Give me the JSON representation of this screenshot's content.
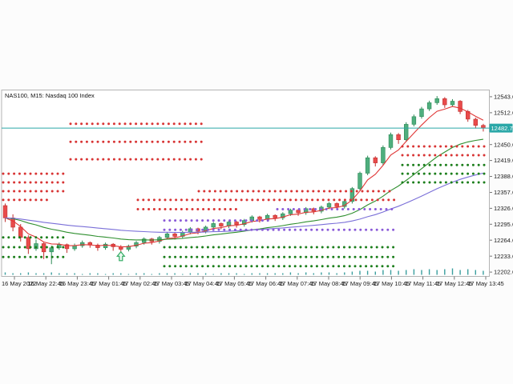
{
  "window": {
    "background": "#fcfcfc"
  },
  "chart_data": {
    "type": "candlestick",
    "title": "NAS100, M15:  Nasdaq 100 Index",
    "symbol": "NAS100",
    "timeframe": "M15",
    "ylim": [
      12195,
      12556
    ],
    "grid": false,
    "colors": {
      "bull": "#4fae7e",
      "bull_border": "#2e8b57",
      "bear": "#e94b4b",
      "bear_border": "#c03030",
      "current_line": "#2aa7a7",
      "volume": "#3a9e9e",
      "axis_text": "#1a1a1a",
      "dot_red": "#d83434",
      "dot_green": "#1b7e1b",
      "dot_purple": "#8a5ad8"
    },
    "price_axis": {
      "labels": [
        {
          "text": "12543.65",
          "price": 12543.65
        },
        {
          "text": "12512.65",
          "price": 12512.65
        },
        {
          "text": "12450.65",
          "price": 12450.65
        },
        {
          "text": "12419.65",
          "price": 12419.65
        },
        {
          "text": "12388.65",
          "price": 12388.65
        },
        {
          "text": "12357.65",
          "price": 12357.65
        },
        {
          "text": "12326.65",
          "price": 12326.65
        },
        {
          "text": "12295.65",
          "price": 12295.65
        },
        {
          "text": "12264.65",
          "price": 12264.65
        },
        {
          "text": "12233.65",
          "price": 12233.65
        },
        {
          "text": "12202.65",
          "price": 12202.65
        }
      ],
      "current": {
        "text": "12482.7",
        "price": 12482.7
      }
    },
    "time_axis": {
      "labels": [
        "16 May 2022",
        "16 May 22:45",
        "16 May 23:45",
        "17 May 01:45",
        "17 May 02:45",
        "17 May 03:45",
        "17 May 04:45",
        "17 May 05:45",
        "17 May 06:45",
        "17 May 07:45",
        "17 May 08:45",
        "17 May 09:45",
        "17 May 10:45",
        "17 May 11:45",
        "17 May 12:45",
        "17 May 13:45"
      ]
    },
    "candles": [
      [
        12332,
        12336,
        12300,
        12308
      ],
      [
        12308,
        12315,
        12282,
        12290
      ],
      [
        12290,
        12296,
        12262,
        12270
      ],
      [
        12270,
        12274,
        12238,
        12248
      ],
      [
        12248,
        12266,
        12244,
        12258
      ],
      [
        12258,
        12260,
        12228,
        12242
      ],
      [
        12242,
        12254,
        12218,
        12250
      ],
      [
        12250,
        12260,
        12246,
        12256
      ],
      [
        12256,
        12258,
        12240,
        12248
      ],
      [
        12248,
        12258,
        12244,
        12254
      ],
      [
        12254,
        12264,
        12250,
        12260
      ],
      [
        12260,
        12262,
        12250,
        12255
      ],
      [
        12255,
        12258,
        12244,
        12250
      ],
      [
        12250,
        12260,
        12246,
        12257
      ],
      [
        12257,
        12259,
        12244,
        12252
      ],
      [
        12252,
        12255,
        12238,
        12247
      ],
      [
        12247,
        12256,
        12243,
        12253
      ],
      [
        12253,
        12263,
        12249,
        12260
      ],
      [
        12260,
        12270,
        12256,
        12267
      ],
      [
        12267,
        12269,
        12256,
        12262
      ],
      [
        12262,
        12273,
        12258,
        12270
      ],
      [
        12270,
        12280,
        12266,
        12277
      ],
      [
        12277,
        12279,
        12266,
        12272
      ],
      [
        12272,
        12283,
        12268,
        12280
      ],
      [
        12280,
        12290,
        12276,
        12287
      ],
      [
        12287,
        12289,
        12276,
        12282
      ],
      [
        12282,
        12293,
        12278,
        12290
      ],
      [
        12290,
        12300,
        12286,
        12297
      ],
      [
        12297,
        12299,
        12286,
        12292
      ],
      [
        12292,
        12303,
        12288,
        12300
      ],
      [
        12300,
        12302,
        12289,
        12295
      ],
      [
        12295,
        12306,
        12291,
        12303
      ],
      [
        12303,
        12313,
        12299,
        12310
      ],
      [
        12310,
        12312,
        12299,
        12305
      ],
      [
        12305,
        12316,
        12301,
        12313
      ],
      [
        12313,
        12315,
        12302,
        12308
      ],
      [
        12308,
        12319,
        12304,
        12316
      ],
      [
        12316,
        12326,
        12312,
        12323
      ],
      [
        12323,
        12325,
        12312,
        12318
      ],
      [
        12318,
        12329,
        12314,
        12326
      ],
      [
        12326,
        12328,
        12315,
        12321
      ],
      [
        12321,
        12332,
        12317,
        12329
      ],
      [
        12329,
        12339,
        12325,
        12336
      ],
      [
        12336,
        12338,
        12324,
        12330
      ],
      [
        12330,
        12343,
        12326,
        12340
      ],
      [
        12340,
        12368,
        12336,
        12365
      ],
      [
        12365,
        12398,
        12361,
        12395
      ],
      [
        12395,
        12429,
        12391,
        12425
      ],
      [
        12425,
        12428,
        12408,
        12415
      ],
      [
        12415,
        12449,
        12411,
        12445
      ],
      [
        12445,
        12474,
        12441,
        12470
      ],
      [
        12470,
        12473,
        12452,
        12460
      ],
      [
        12460,
        12494,
        12456,
        12490
      ],
      [
        12490,
        12509,
        12486,
        12505
      ],
      [
        12505,
        12524,
        12501,
        12520
      ],
      [
        12520,
        12536,
        12516,
        12532
      ],
      [
        12532,
        12545,
        12528,
        12540
      ],
      [
        12540,
        12543,
        12522,
        12528
      ],
      [
        12528,
        12539,
        12524,
        12535
      ],
      [
        12535,
        12537,
        12510,
        12515
      ],
      [
        12515,
        12518,
        12495,
        12500
      ],
      [
        12500,
        12503,
        12482,
        12488
      ],
      [
        12488,
        12491,
        12476,
        12482.7
      ]
    ],
    "volumes": [
      3,
      2,
      2,
      3,
      2,
      2,
      3,
      2,
      2,
      2,
      1,
      2,
      2,
      1,
      2,
      2,
      1,
      2,
      2,
      1,
      2,
      2,
      2,
      1,
      2,
      2,
      2,
      1,
      2,
      2,
      2,
      1,
      2,
      2,
      2,
      2,
      2,
      3,
      2,
      3,
      2,
      3,
      3,
      2,
      3,
      4,
      5,
      5,
      4,
      6,
      6,
      5,
      6,
      7,
      6,
      7,
      6,
      7,
      8,
      6,
      7,
      6,
      5
    ],
    "moving_averages": [
      {
        "name": "fast-red",
        "period": 5,
        "color": "#e03636"
      },
      {
        "name": "slow-green",
        "period": 21,
        "color": "#2f8f2f"
      },
      {
        "name": "trend-purple",
        "period": 50,
        "color": "#7a6fd8"
      }
    ],
    "sr_dot_rows": [
      {
        "color": "#d83434",
        "price": 12491,
        "segments": [
          [
            88,
            252
          ]
        ]
      },
      {
        "color": "#d83434",
        "price": 12456,
        "segments": [
          [
            88,
            252
          ]
        ]
      },
      {
        "color": "#d83434",
        "price": 12422,
        "segments": [
          [
            88,
            252
          ]
        ]
      },
      {
        "color": "#d83434",
        "price": 12447,
        "segments": [
          [
            502,
            608
          ]
        ]
      },
      {
        "color": "#d83434",
        "price": 12430,
        "segments": [
          [
            502,
            608
          ]
        ]
      },
      {
        "color": "#1b7e1b",
        "price": 12411,
        "segments": [
          [
            502,
            608
          ]
        ]
      },
      {
        "color": "#1b7e1b",
        "price": 12394,
        "segments": [
          [
            502,
            608
          ]
        ]
      },
      {
        "color": "#1b7e1b",
        "price": 12377,
        "segments": [
          [
            502,
            608
          ]
        ]
      },
      {
        "color": "#d83434",
        "price": 12394,
        "segments": [
          [
            4,
            80
          ]
        ]
      },
      {
        "color": "#d83434",
        "price": 12377,
        "segments": [
          [
            4,
            80
          ]
        ]
      },
      {
        "color": "#d83434",
        "price": 12360,
        "segments": [
          [
            4,
            80
          ],
          [
            248,
            492
          ]
        ]
      },
      {
        "color": "#d83434",
        "price": 12343,
        "segments": [
          [
            4,
            60
          ],
          [
            172,
            492
          ]
        ]
      },
      {
        "color": "#d83434",
        "price": 12325,
        "segments": [
          [
            172,
            300
          ]
        ]
      },
      {
        "color": "#8a5ad8",
        "price": 12325,
        "segments": [
          [
            346,
            492
          ]
        ]
      },
      {
        "color": "#8a5ad8",
        "price": 12303,
        "segments": [
          [
            205,
            340
          ]
        ]
      },
      {
        "color": "#8a5ad8",
        "price": 12285,
        "segments": [
          [
            205,
            492
          ]
        ]
      },
      {
        "color": "#1b7e1b",
        "price": 12270,
        "segments": [
          [
            4,
            80
          ]
        ]
      },
      {
        "color": "#1b7e1b",
        "price": 12251,
        "segments": [
          [
            4,
            80
          ],
          [
            205,
            492
          ]
        ]
      },
      {
        "color": "#1b7e1b",
        "price": 12232,
        "segments": [
          [
            4,
            80
          ],
          [
            205,
            492
          ]
        ]
      },
      {
        "color": "#1b7e1b",
        "price": 12214,
        "segments": [
          [
            205,
            492
          ]
        ]
      }
    ],
    "signals": [
      {
        "type": "buy-arrow",
        "candle_index": 15,
        "price": 12228,
        "color": "#2faa60"
      }
    ]
  }
}
